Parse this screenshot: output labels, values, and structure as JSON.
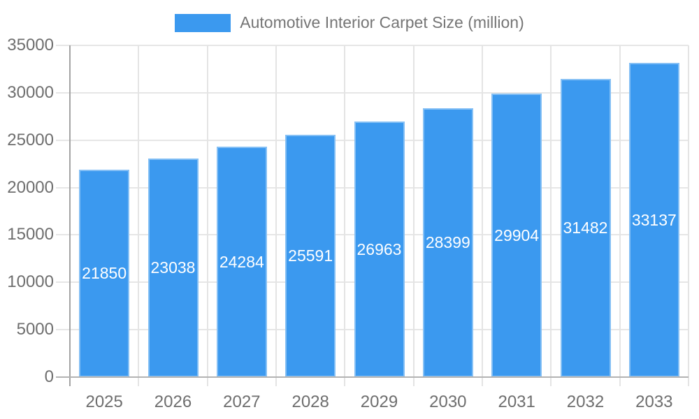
{
  "legend": {
    "label": "Automotive Interior Carpet Size (million)"
  },
  "chart_data": {
    "type": "bar",
    "title": "Automotive Interior Carpet Size (million)",
    "legend_position": "top",
    "categories": [
      "2025",
      "2026",
      "2027",
      "2028",
      "2029",
      "2030",
      "2031",
      "2032",
      "2033"
    ],
    "series": [
      {
        "name": "Automotive Interior Carpet Size (million)",
        "values": [
          21850,
          23038,
          24284,
          25591,
          26963,
          28399,
          29904,
          31482,
          33137
        ]
      }
    ],
    "bar_value_labels": [
      "21850",
      "23038",
      "24284",
      "25591",
      "26963",
      "28399",
      "29904",
      "31482",
      "33137"
    ],
    "xlabel": "",
    "ylabel": "",
    "ylim": [
      0,
      35000
    ],
    "ytick_interval": 5000,
    "ytick_labels": [
      "0",
      "5000",
      "10000",
      "15000",
      "20000",
      "25000",
      "30000",
      "35000"
    ],
    "grid": true,
    "colors": {
      "bar": "#3B99EF",
      "bar_label": "#FFFFFF",
      "gridline": "#E6E6E6",
      "y_axis_line": "#A3A3A3",
      "x_axis_line": "#B3B3B3",
      "tick_text": "#6E6E6E",
      "title_text": "#757575"
    }
  }
}
